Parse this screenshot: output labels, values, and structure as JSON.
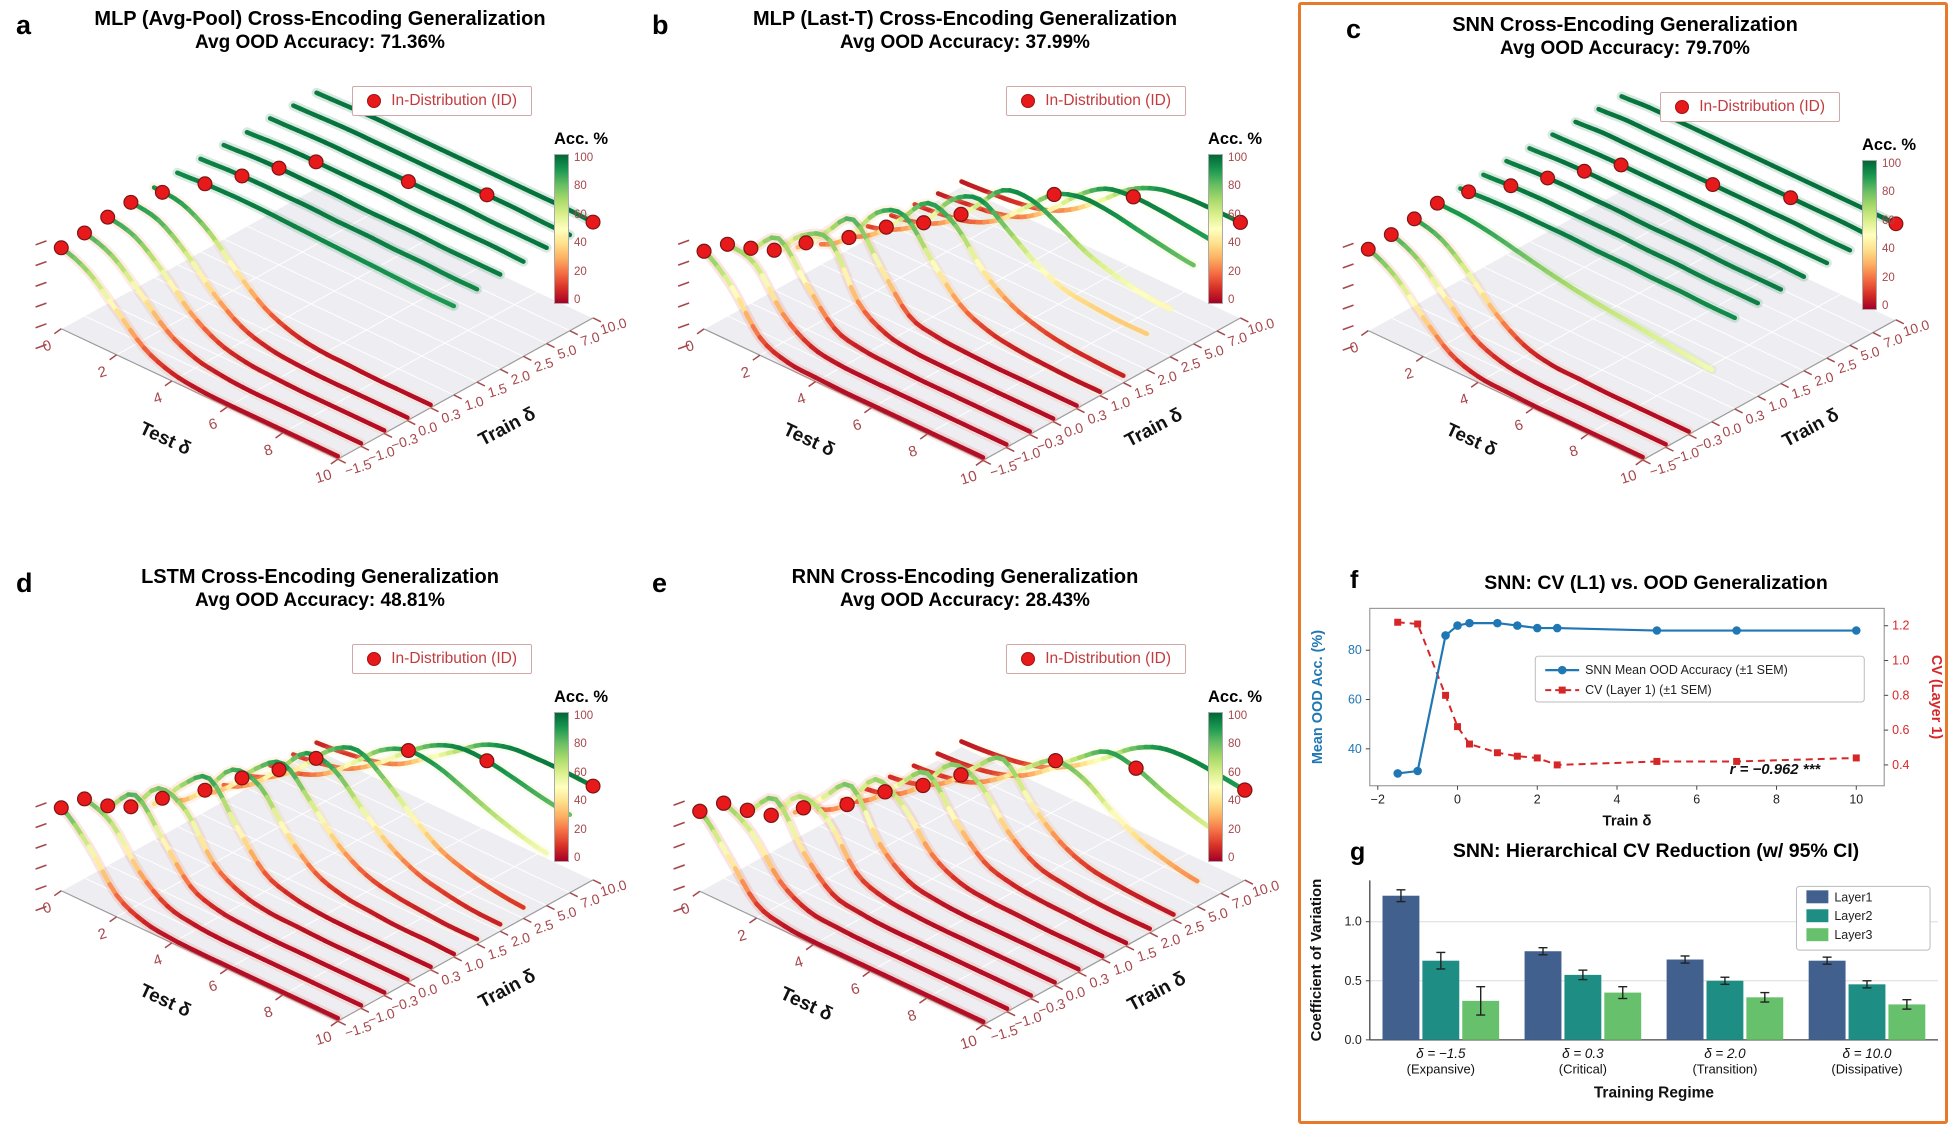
{
  "shared": {
    "id_legend_label": "In-Distribution (ID)",
    "colorbar_label": "Acc. %",
    "colorbar_ticks": [
      100,
      80,
      60,
      40,
      20,
      0
    ],
    "test_axis_label": "Test δ",
    "train_axis_label": "Train δ",
    "test_ticks": [
      0,
      2,
      4,
      6,
      8,
      10
    ],
    "train_values": [
      -1.5,
      -1.0,
      -0.3,
      0.0,
      0.3,
      1.0,
      1.5,
      2.0,
      2.5,
      5.0,
      7.0,
      10.0
    ]
  },
  "colors": {
    "highlight_border": "#E8782A",
    "tick_label": "#A6474C",
    "legend_text": "#C23B3E",
    "id_dot": "#E8191B",
    "id_dot_edge": "#7E1416",
    "blue": "#1F77B4",
    "red": "#D62728",
    "bar_colors": [
      "#41608E",
      "#1E8E84",
      "#67C06B"
    ],
    "cmap": [
      "#A50026",
      "#D73027",
      "#F46D43",
      "#FDAE61",
      "#FEE08B",
      "#FFFFBF",
      "#D9EF8B",
      "#A6D96A",
      "#66BD63",
      "#1A9850",
      "#006837"
    ]
  },
  "chart_data": [
    {
      "type": "ridge3d",
      "panel_letter": "a",
      "title": "MLP (Avg-Pool) Cross-Encoding Generalization",
      "subtitle": "Avg OOD Accuracy: 71.36%",
      "xlabel": "Test δ",
      "ylabel": "Train δ",
      "zlabel": "Acc. %",
      "test_delta": [
        0,
        1,
        2,
        3,
        4,
        5,
        6,
        7,
        8,
        9,
        10
      ],
      "train_delta": [
        -1.5,
        -1.0,
        -0.3,
        0.0,
        0.3,
        1.0,
        1.5,
        2.0,
        2.5,
        5.0,
        7.0,
        10.0
      ],
      "accuracy_pct": [
        [
          82,
          70,
          45,
          20,
          8,
          4,
          3,
          3,
          3,
          3,
          3
        ],
        [
          84,
          74,
          50,
          24,
          10,
          5,
          3,
          3,
          3,
          3,
          3
        ],
        [
          87,
          80,
          58,
          30,
          13,
          6,
          4,
          3,
          3,
          3,
          3
        ],
        [
          89,
          84,
          64,
          36,
          16,
          7,
          4,
          3,
          3,
          3,
          3
        ],
        [
          91,
          88,
          72,
          45,
          22,
          10,
          5,
          4,
          3,
          3,
          3
        ],
        [
          93,
          95,
          96,
          96,
          95,
          94,
          93,
          92,
          91,
          90,
          90
        ],
        [
          94,
          96,
          97,
          97,
          97,
          96,
          96,
          95,
          95,
          94,
          94
        ],
        [
          95,
          97,
          98,
          98,
          98,
          97,
          97,
          97,
          96,
          96,
          96
        ],
        [
          95,
          97,
          98,
          98,
          98,
          98,
          97,
          97,
          97,
          97,
          96
        ],
        [
          96,
          97,
          98,
          98,
          98,
          98,
          98,
          98,
          97,
          97,
          97
        ],
        [
          96,
          97,
          98,
          98,
          98,
          98,
          98,
          98,
          98,
          97,
          97
        ],
        [
          96,
          97,
          98,
          98,
          98,
          98,
          98,
          98,
          98,
          98,
          97
        ]
      ]
    },
    {
      "type": "ridge3d",
      "panel_letter": "b",
      "title": "MLP (Last-T) Cross-Encoding Generalization",
      "subtitle": "Avg OOD Accuracy: 37.99%",
      "xlabel": "Test δ",
      "ylabel": "Train δ",
      "zlabel": "Acc. %",
      "test_delta": [
        0,
        1,
        2,
        3,
        4,
        5,
        6,
        7,
        8,
        9,
        10
      ],
      "train_delta": [
        -1.5,
        -1.0,
        -0.3,
        0.0,
        0.3,
        1.0,
        1.5,
        2.0,
        2.5,
        5.0,
        7.0,
        10.0
      ],
      "accuracy_pct": [
        [
          78,
          55,
          18,
          6,
          4,
          3,
          3,
          3,
          3,
          3,
          3
        ],
        [
          72,
          65,
          28,
          9,
          4,
          3,
          3,
          3,
          3,
          3,
          3
        ],
        [
          55,
          78,
          45,
          14,
          6,
          4,
          3,
          3,
          3,
          3,
          3
        ],
        [
          40,
          68,
          76,
          28,
          9,
          4,
          3,
          3,
          3,
          3,
          3
        ],
        [
          30,
          58,
          84,
          48,
          14,
          6,
          4,
          3,
          3,
          3,
          3
        ],
        [
          20,
          40,
          78,
          88,
          55,
          25,
          12,
          7,
          5,
          4,
          4
        ],
        [
          16,
          30,
          58,
          88,
          78,
          45,
          25,
          15,
          10,
          8,
          7
        ],
        [
          12,
          22,
          42,
          78,
          92,
          75,
          55,
          42,
          38,
          36,
          36
        ],
        [
          10,
          16,
          30,
          58,
          88,
          92,
          80,
          65,
          56,
          50,
          48
        ],
        [
          8,
          11,
          17,
          32,
          58,
          84,
          94,
          93,
          88,
          83,
          79
        ],
        [
          6,
          9,
          13,
          22,
          42,
          70,
          90,
          95,
          94,
          91,
          88
        ],
        [
          5,
          7,
          10,
          16,
          30,
          52,
          76,
          90,
          95,
          96,
          96
        ]
      ]
    },
    {
      "type": "ridge3d",
      "panel_letter": "c",
      "title": "SNN Cross-Encoding Generalization",
      "subtitle": "Avg OOD Accuracy: 79.70%",
      "xlabel": "Test δ",
      "ylabel": "Train δ",
      "zlabel": "Acc. %",
      "test_delta": [
        0,
        1,
        2,
        3,
        4,
        5,
        6,
        7,
        8,
        9,
        10
      ],
      "train_delta": [
        -1.5,
        -1.0,
        -0.3,
        0.0,
        0.3,
        1.0,
        1.5,
        2.0,
        2.5,
        5.0,
        7.0,
        10.0
      ],
      "accuracy_pct": [
        [
          83,
          68,
          40,
          16,
          6,
          4,
          3,
          3,
          3,
          3,
          3
        ],
        [
          85,
          72,
          46,
          20,
          8,
          4,
          3,
          3,
          3,
          3,
          3
        ],
        [
          88,
          80,
          58,
          30,
          12,
          5,
          4,
          3,
          3,
          3,
          3
        ],
        [
          91,
          90,
          86,
          80,
          74,
          69,
          65,
          62,
          59,
          56,
          53
        ],
        [
          93,
          95,
          96,
          96,
          96,
          95,
          95,
          94,
          94,
          93,
          93
        ],
        [
          94,
          96,
          97,
          97,
          97,
          97,
          96,
          96,
          95,
          95,
          95
        ],
        [
          95,
          97,
          98,
          98,
          98,
          97,
          97,
          97,
          96,
          96,
          96
        ],
        [
          95,
          97,
          98,
          98,
          98,
          98,
          97,
          97,
          97,
          97,
          96
        ],
        [
          96,
          97,
          98,
          98,
          98,
          98,
          98,
          98,
          97,
          97,
          97
        ],
        [
          96,
          98,
          98,
          98,
          98,
          98,
          98,
          98,
          98,
          97,
          97
        ],
        [
          96,
          98,
          98,
          98,
          98,
          98,
          98,
          98,
          98,
          98,
          97
        ],
        [
          96,
          98,
          98,
          98,
          98,
          98,
          98,
          98,
          98,
          98,
          98
        ]
      ]
    },
    {
      "type": "ridge3d",
      "panel_letter": "d",
      "title": "LSTM Cross-Encoding Generalization",
      "subtitle": "Avg OOD Accuracy: 48.81%",
      "xlabel": "Test δ",
      "ylabel": "Train δ",
      "zlabel": "Acc. %",
      "test_delta": [
        0,
        1,
        2,
        3,
        4,
        5,
        6,
        7,
        8,
        9,
        10
      ],
      "train_delta": [
        -1.5,
        -1.0,
        -0.3,
        0.0,
        0.3,
        1.0,
        1.5,
        2.0,
        2.5,
        5.0,
        7.0,
        10.0
      ],
      "accuracy_pct": [
        [
          84,
          58,
          22,
          8,
          4,
          3,
          3,
          3,
          3,
          3,
          3
        ],
        [
          80,
          68,
          32,
          11,
          5,
          3,
          3,
          3,
          3,
          3,
          3
        ],
        [
          60,
          84,
          52,
          18,
          7,
          4,
          3,
          3,
          3,
          3,
          3
        ],
        [
          46,
          78,
          68,
          28,
          11,
          5,
          4,
          3,
          3,
          3,
          3
        ],
        [
          36,
          68,
          88,
          52,
          19,
          8,
          4,
          3,
          3,
          3,
          3
        ],
        [
          26,
          50,
          84,
          80,
          44,
          19,
          9,
          6,
          4,
          4,
          3
        ],
        [
          21,
          40,
          72,
          90,
          64,
          34,
          17,
          10,
          7,
          5,
          5
        ],
        [
          16,
          30,
          58,
          88,
          84,
          58,
          34,
          19,
          12,
          8,
          7
        ],
        [
          13,
          25,
          48,
          78,
          91,
          74,
          50,
          30,
          20,
          14,
          11
        ],
        [
          10,
          15,
          28,
          52,
          78,
          91,
          89,
          79,
          68,
          59,
          53
        ],
        [
          8,
          12,
          20,
          38,
          62,
          83,
          94,
          94,
          89,
          83,
          79
        ],
        [
          7,
          10,
          15,
          25,
          44,
          64,
          84,
          94,
          96,
          96,
          95
        ]
      ]
    },
    {
      "type": "ridge3d",
      "panel_letter": "e",
      "title": "RNN Cross-Encoding Generalization",
      "subtitle": "Avg OOD Accuracy: 28.43%",
      "xlabel": "Test δ",
      "ylabel": "Train δ",
      "zlabel": "Acc. %",
      "test_delta": [
        0,
        1,
        2,
        3,
        4,
        5,
        6,
        7,
        8,
        9,
        10
      ],
      "train_delta": [
        -1.5,
        -1.0,
        -0.3,
        0.0,
        0.3,
        1.0,
        1.5,
        2.0,
        2.5,
        5.0,
        7.0,
        10.0
      ],
      "accuracy_pct": [
        [
          79,
          48,
          14,
          5,
          3,
          3,
          3,
          3,
          3,
          3,
          3
        ],
        [
          74,
          58,
          23,
          7,
          4,
          3,
          3,
          3,
          3,
          3,
          3
        ],
        [
          54,
          78,
          38,
          11,
          5,
          3,
          3,
          3,
          3,
          3,
          3
        ],
        [
          36,
          68,
          58,
          19,
          7,
          4,
          3,
          3,
          3,
          3,
          3
        ],
        [
          26,
          54,
          78,
          34,
          11,
          5,
          3,
          3,
          3,
          3,
          3
        ],
        [
          16,
          34,
          72,
          58,
          24,
          9,
          5,
          4,
          3,
          3,
          3
        ],
        [
          12,
          26,
          54,
          78,
          44,
          17,
          8,
          5,
          4,
          3,
          3
        ],
        [
          10,
          18,
          40,
          74,
          68,
          34,
          14,
          8,
          5,
          4,
          4
        ],
        [
          9,
          15,
          30,
          58,
          79,
          48,
          24,
          12,
          8,
          6,
          5
        ],
        [
          7,
          10,
          17,
          34,
          58,
          78,
          73,
          54,
          39,
          30,
          25
        ],
        [
          6,
          8,
          13,
          24,
          44,
          68,
          87,
          84,
          73,
          64,
          58
        ],
        [
          5,
          7,
          11,
          19,
          34,
          54,
          77,
          91,
          94,
          92,
          89
        ]
      ]
    },
    {
      "type": "line",
      "panel_letter": "f",
      "title": "SNN: CV (L1) vs. OOD Generalization",
      "xlabel": "Train δ",
      "ylabel_left": "Mean OOD Acc. (%)",
      "ylabel_right": "CV (Layer 1)",
      "x": [
        -1.5,
        -1.0,
        -0.3,
        0.0,
        0.3,
        1.0,
        1.5,
        2.0,
        2.5,
        5.0,
        7.0,
        10.0
      ],
      "series": [
        {
          "name": "SNN Mean OOD Accuracy (±1 SEM)",
          "axis": "left",
          "values": [
            30,
            31,
            86,
            90,
            91,
            91,
            90,
            89,
            89,
            88,
            88,
            88
          ]
        },
        {
          "name": "CV (Layer 1) (±1 SEM)",
          "axis": "right",
          "values": [
            1.22,
            1.21,
            0.8,
            0.62,
            0.52,
            0.47,
            0.45,
            0.44,
            0.4,
            0.42,
            0.42,
            0.44
          ]
        }
      ],
      "correlation_annotation": "r = −0.962 ***",
      "xticks": [
        -2,
        0,
        2,
        4,
        6,
        8,
        10
      ],
      "yticks_left": [
        40,
        60,
        80
      ],
      "yticks_right": [
        0.4,
        0.6,
        0.8,
        1.0,
        1.2
      ],
      "xlim": [
        -2.2,
        10.7
      ],
      "ylim_left": [
        25,
        97
      ],
      "ylim_right": [
        0.28,
        1.3
      ],
      "legend_position": "center-right"
    },
    {
      "type": "bar",
      "panel_letter": "g",
      "title": "SNN: Hierarchical CV Reduction (w/ 95% CI)",
      "xlabel": "Training Regime",
      "ylabel": "Coefficient of Variation",
      "categories_line1": [
        "δ = −1.5",
        "δ = 0.3",
        "δ = 2.0",
        "δ = 10.0"
      ],
      "categories_line2": [
        "(Expansive)",
        "(Critical)",
        "(Transition)",
        "(Dissipative)"
      ],
      "series": [
        {
          "name": "Layer1",
          "values": [
            1.22,
            0.75,
            0.68,
            0.67
          ],
          "errors": [
            0.05,
            0.03,
            0.03,
            0.03
          ]
        },
        {
          "name": "Layer2",
          "values": [
            0.67,
            0.55,
            0.5,
            0.47
          ],
          "errors": [
            0.07,
            0.04,
            0.03,
            0.03
          ]
        },
        {
          "name": "Layer3",
          "values": [
            0.33,
            0.4,
            0.36,
            0.3
          ],
          "errors": [
            0.12,
            0.05,
            0.04,
            0.04
          ]
        }
      ],
      "yticks": [
        0.0,
        0.5,
        1.0
      ],
      "ylim": [
        0,
        1.35
      ],
      "legend_position": "top-right"
    }
  ]
}
